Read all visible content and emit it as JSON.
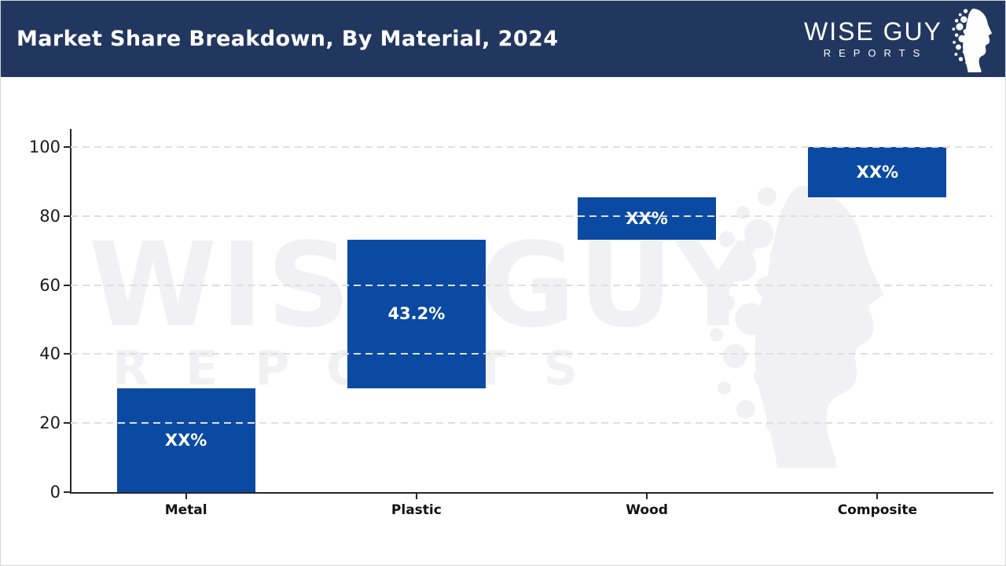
{
  "header": {
    "title": "Market Share Breakdown, By Material, 2024",
    "logo": {
      "line1": "WISE GUY",
      "line2": "REPORTS"
    }
  },
  "watermark": {
    "line1": "WISE GUY",
    "line2": "REPORTS"
  },
  "colors": {
    "header_navy": "#22375f",
    "bar_blue": "#0b4aa2",
    "grid_gray": "#dedede",
    "axis_dark": "#262626",
    "watermark_gray": "#f1f1f4",
    "label_white": "#ffffff"
  },
  "chart_data": {
    "type": "bar",
    "subtype": "waterfall",
    "title": "Market Share Breakdown, By Material, 2024",
    "xlabel": "",
    "ylabel": "",
    "categories": [
      "Metal",
      "Plastic",
      "Wood",
      "Composite"
    ],
    "bars": [
      {
        "category": "Metal",
        "start": 0,
        "end": 30,
        "value": 30,
        "label": "XX%"
      },
      {
        "category": "Plastic",
        "start": 30,
        "end": 73.2,
        "value": 43.2,
        "label": "43.2%"
      },
      {
        "category": "Wood",
        "start": 73.2,
        "end": 85.5,
        "value": 12.3,
        "label": "XX%"
      },
      {
        "category": "Composite",
        "start": 85.5,
        "end": 100,
        "value": 14.5,
        "label": "XX%"
      }
    ],
    "yticks": [
      0,
      20,
      40,
      60,
      80,
      100
    ],
    "ylim": [
      0,
      105
    ],
    "grid": "horizontal dashed, drawn above bars",
    "legend": "none"
  }
}
